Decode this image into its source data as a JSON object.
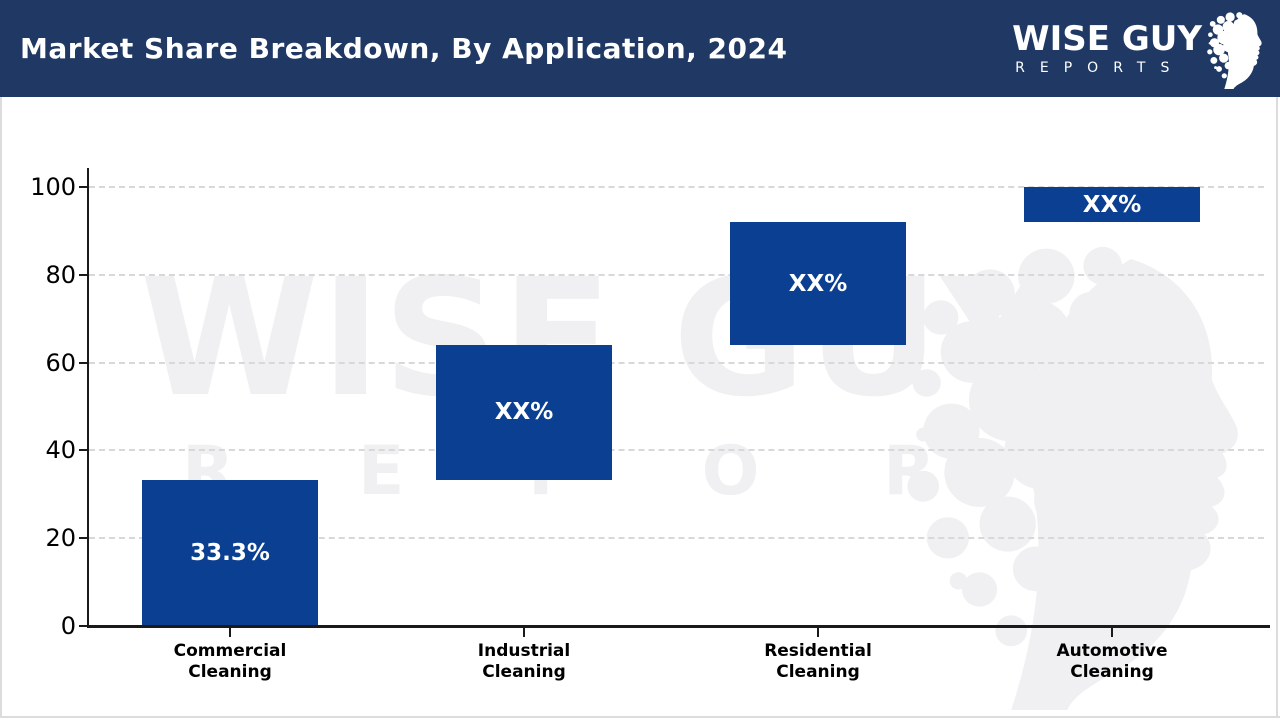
{
  "header": {
    "title": "Market Share Breakdown, By Application, 2024",
    "logo": {
      "line1": "WISE GUY",
      "line2": "REPORTS"
    }
  },
  "watermark": {
    "line1": "WISE GUY",
    "line2": "REPORTS",
    "line2_display": "R E P O R T S"
  },
  "colors": {
    "header_bg": "#1f3864",
    "bar": "#0b3f92",
    "bar_label": "#ffffff",
    "gridline": "#d8d8d8",
    "axis": "#1a1a1a",
    "watermark": "#f0f0f2",
    "background": "#ffffff"
  },
  "chart_data": {
    "type": "bar",
    "subtype": "waterfall",
    "title": "Market Share Breakdown, By Application, 2024",
    "xlabel": "",
    "ylabel": "",
    "categories": [
      {
        "line1": "Commercial",
        "line2": "Cleaning"
      },
      {
        "line1": "Industrial",
        "line2": "Cleaning"
      },
      {
        "line1": "Residential",
        "line2": "Cleaning"
      },
      {
        "line1": "Automotive",
        "line2": "Cleaning"
      }
    ],
    "segments": [
      {
        "category": "Commercial Cleaning",
        "start": 0,
        "end": 33.3,
        "label": "33.3%"
      },
      {
        "category": "Industrial Cleaning",
        "start": 33.3,
        "end": 64,
        "label": "XX%"
      },
      {
        "category": "Residential Cleaning",
        "start": 64,
        "end": 92,
        "label": "XX%"
      },
      {
        "category": "Automotive Cleaning",
        "start": 92,
        "end": 100,
        "label": "XX%"
      }
    ],
    "yticks": [
      0,
      20,
      40,
      60,
      80,
      100
    ],
    "ylim": [
      0,
      105
    ],
    "grid": "horizontal-dashed",
    "legend": "none"
  }
}
